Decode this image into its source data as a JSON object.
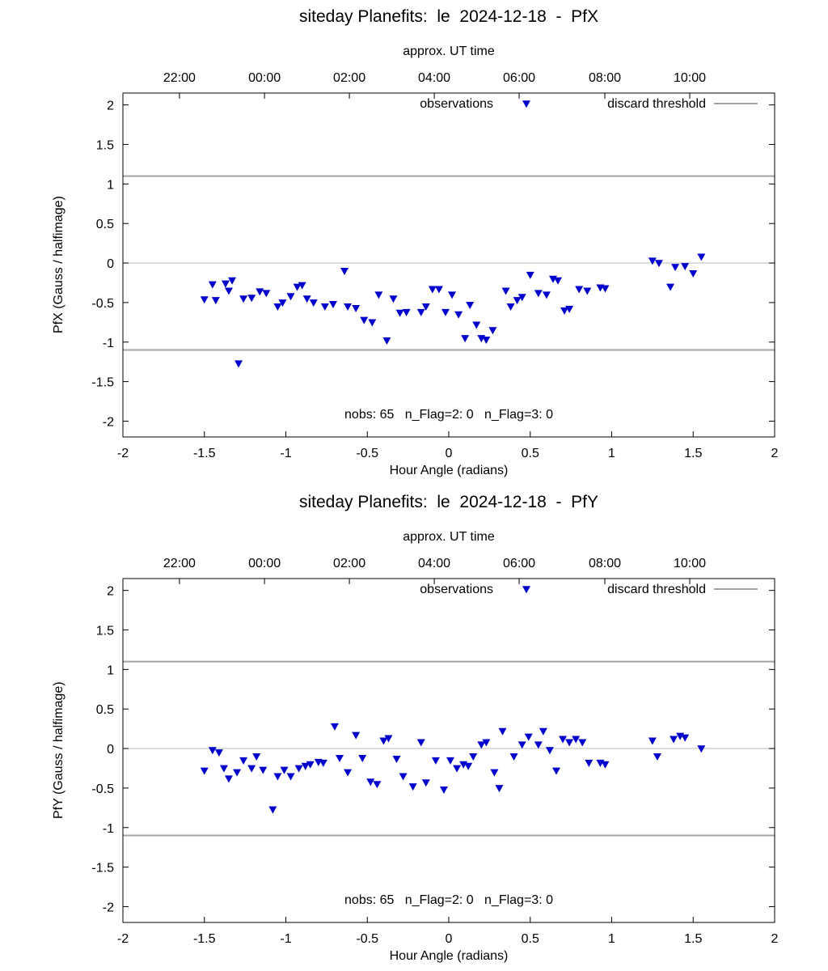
{
  "page": {
    "background": "#ffffff"
  },
  "charts": [
    {
      "title": "siteday Planefits:  le  2024-12-18  -  PfX",
      "top_axis_label": "approx. UT time",
      "xlabel": "Hour Angle (radians)",
      "ylabel": "PfX (Gauss / halfimage)",
      "annotation": "nobs: 65   n_Flag=2: 0   n_Flag=3: 0",
      "stats": {
        "nobs": 65,
        "n_flag_2": 0,
        "n_flag_3": 0
      },
      "legend": [
        {
          "label": "observations",
          "type": "marker"
        },
        {
          "label": "discard threshold",
          "type": "line"
        }
      ],
      "chart_data": {
        "type": "scatter",
        "xlabel": "Hour Angle (radians)",
        "ylabel": "PfX (Gauss / halfimage)",
        "xlim": [
          -2,
          2
        ],
        "ylim": [
          -2.2,
          2.15
        ],
        "x_ticks": [
          -2,
          -1.5,
          -1,
          -0.5,
          0,
          0.5,
          1,
          1.5,
          2
        ],
        "y_ticks": [
          2,
          1.5,
          1,
          0.5,
          0,
          -0.5,
          -1,
          -1.5,
          -2
        ],
        "top_ticks": [
          {
            "x": -1.653,
            "label": "22:00"
          },
          {
            "x": -1.131,
            "label": "00:00"
          },
          {
            "x": -0.61,
            "label": "02:00"
          },
          {
            "x": -0.089,
            "label": "04:00"
          },
          {
            "x": 0.432,
            "label": "06:00"
          },
          {
            "x": 0.958,
            "label": "08:00"
          },
          {
            "x": 1.479,
            "label": "10:00"
          }
        ],
        "threshold": 1.1,
        "zero_line": 0,
        "marker_color": "#0000cc",
        "threshold_color": "#a3a3a3",
        "zero_line_color": "#b8b8b8",
        "points": [
          [
            -1.5,
            -0.46
          ],
          [
            -1.45,
            -0.27
          ],
          [
            -1.43,
            -0.47
          ],
          [
            -1.37,
            -0.26
          ],
          [
            -1.35,
            -0.35
          ],
          [
            -1.33,
            -0.22
          ],
          [
            -1.29,
            -1.27
          ],
          [
            -1.26,
            -0.45
          ],
          [
            -1.21,
            -0.44
          ],
          [
            -1.16,
            -0.36
          ],
          [
            -1.12,
            -0.38
          ],
          [
            -1.05,
            -0.55
          ],
          [
            -1.02,
            -0.5
          ],
          [
            -0.97,
            -0.42
          ],
          [
            -0.93,
            -0.3
          ],
          [
            -0.9,
            -0.28
          ],
          [
            -0.87,
            -0.45
          ],
          [
            -0.83,
            -0.5
          ],
          [
            -0.76,
            -0.55
          ],
          [
            -0.71,
            -0.52
          ],
          [
            -0.64,
            -0.1
          ],
          [
            -0.62,
            -0.55
          ],
          [
            -0.57,
            -0.57
          ],
          [
            -0.52,
            -0.72
          ],
          [
            -0.47,
            -0.75
          ],
          [
            -0.43,
            -0.4
          ],
          [
            -0.38,
            -0.98
          ],
          [
            -0.34,
            -0.45
          ],
          [
            -0.3,
            -0.63
          ],
          [
            -0.26,
            -0.62
          ],
          [
            -0.17,
            -0.62
          ],
          [
            -0.14,
            -0.55
          ],
          [
            -0.1,
            -0.33
          ],
          [
            -0.06,
            -0.33
          ],
          [
            -0.02,
            -0.62
          ],
          [
            0.02,
            -0.4
          ],
          [
            0.06,
            -0.65
          ],
          [
            0.1,
            -0.95
          ],
          [
            0.13,
            -0.53
          ],
          [
            0.17,
            -0.78
          ],
          [
            0.2,
            -0.95
          ],
          [
            0.23,
            -0.97
          ],
          [
            0.27,
            -0.85
          ],
          [
            0.35,
            -0.35
          ],
          [
            0.38,
            -0.55
          ],
          [
            0.42,
            -0.47
          ],
          [
            0.45,
            -0.43
          ],
          [
            0.5,
            -0.15
          ],
          [
            0.55,
            -0.38
          ],
          [
            0.6,
            -0.4
          ],
          [
            0.64,
            -0.2
          ],
          [
            0.67,
            -0.22
          ],
          [
            0.71,
            -0.6
          ],
          [
            0.74,
            -0.58
          ],
          [
            0.8,
            -0.33
          ],
          [
            0.85,
            -0.35
          ],
          [
            0.93,
            -0.31
          ],
          [
            0.96,
            -0.32
          ],
          [
            1.25,
            0.03
          ],
          [
            1.29,
            0.0
          ],
          [
            1.36,
            -0.3
          ],
          [
            1.39,
            -0.05
          ],
          [
            1.45,
            -0.04
          ],
          [
            1.5,
            -0.13
          ],
          [
            1.55,
            0.08
          ]
        ]
      }
    },
    {
      "title": "siteday Planefits:  le  2024-12-18  -  PfY",
      "top_axis_label": "approx. UT time",
      "xlabel": "Hour Angle (radians)",
      "ylabel": "PfY (Gauss / halfimage)",
      "annotation": "nobs: 65   n_Flag=2: 0   n_Flag=3: 0",
      "stats": {
        "nobs": 65,
        "n_flag_2": 0,
        "n_flag_3": 0
      },
      "legend": [
        {
          "label": "observations",
          "type": "marker"
        },
        {
          "label": "discard threshold",
          "type": "line"
        }
      ],
      "chart_data": {
        "type": "scatter",
        "xlabel": "Hour Angle (radians)",
        "ylabel": "PfY (Gauss / halfimage)",
        "xlim": [
          -2,
          2
        ],
        "ylim": [
          -2.2,
          2.15
        ],
        "x_ticks": [
          -2,
          -1.5,
          -1,
          -0.5,
          0,
          0.5,
          1,
          1.5,
          2
        ],
        "y_ticks": [
          2,
          1.5,
          1,
          0.5,
          0,
          -0.5,
          -1,
          -1.5,
          -2
        ],
        "top_ticks": [
          {
            "x": -1.653,
            "label": "22:00"
          },
          {
            "x": -1.131,
            "label": "00:00"
          },
          {
            "x": -0.61,
            "label": "02:00"
          },
          {
            "x": -0.089,
            "label": "04:00"
          },
          {
            "x": 0.432,
            "label": "06:00"
          },
          {
            "x": 0.958,
            "label": "08:00"
          },
          {
            "x": 1.479,
            "label": "10:00"
          }
        ],
        "threshold": 1.1,
        "zero_line": 0,
        "marker_color": "#0000cc",
        "threshold_color": "#a3a3a3",
        "zero_line_color": "#b8b8b8",
        "points": [
          [
            -1.5,
            -0.28
          ],
          [
            -1.45,
            -0.02
          ],
          [
            -1.41,
            -0.05
          ],
          [
            -1.38,
            -0.25
          ],
          [
            -1.35,
            -0.38
          ],
          [
            -1.3,
            -0.3
          ],
          [
            -1.26,
            -0.15
          ],
          [
            -1.21,
            -0.25
          ],
          [
            -1.18,
            -0.1
          ],
          [
            -1.14,
            -0.27
          ],
          [
            -1.08,
            -0.77
          ],
          [
            -1.05,
            -0.35
          ],
          [
            -1.01,
            -0.27
          ],
          [
            -0.97,
            -0.35
          ],
          [
            -0.92,
            -0.25
          ],
          [
            -0.88,
            -0.22
          ],
          [
            -0.85,
            -0.2
          ],
          [
            -0.8,
            -0.17
          ],
          [
            -0.77,
            -0.18
          ],
          [
            -0.7,
            0.28
          ],
          [
            -0.67,
            -0.12
          ],
          [
            -0.62,
            -0.3
          ],
          [
            -0.57,
            0.17
          ],
          [
            -0.53,
            -0.12
          ],
          [
            -0.48,
            -0.42
          ],
          [
            -0.44,
            -0.45
          ],
          [
            -0.4,
            0.1
          ],
          [
            -0.37,
            0.13
          ],
          [
            -0.32,
            -0.13
          ],
          [
            -0.28,
            -0.35
          ],
          [
            -0.22,
            -0.48
          ],
          [
            -0.17,
            0.08
          ],
          [
            -0.14,
            -0.43
          ],
          [
            -0.08,
            -0.15
          ],
          [
            -0.03,
            -0.52
          ],
          [
            0.01,
            -0.15
          ],
          [
            0.05,
            -0.25
          ],
          [
            0.09,
            -0.2
          ],
          [
            0.12,
            -0.22
          ],
          [
            0.15,
            -0.1
          ],
          [
            0.2,
            0.05
          ],
          [
            0.23,
            0.08
          ],
          [
            0.28,
            -0.3
          ],
          [
            0.31,
            -0.5
          ],
          [
            0.33,
            0.22
          ],
          [
            0.4,
            -0.1
          ],
          [
            0.45,
            0.05
          ],
          [
            0.49,
            0.15
          ],
          [
            0.55,
            0.05
          ],
          [
            0.58,
            0.22
          ],
          [
            0.62,
            -0.02
          ],
          [
            0.66,
            -0.28
          ],
          [
            0.7,
            0.12
          ],
          [
            0.74,
            0.08
          ],
          [
            0.78,
            0.12
          ],
          [
            0.82,
            0.08
          ],
          [
            0.86,
            -0.18
          ],
          [
            0.93,
            -0.18
          ],
          [
            0.96,
            -0.2
          ],
          [
            1.25,
            0.1
          ],
          [
            1.28,
            -0.1
          ],
          [
            1.38,
            0.12
          ],
          [
            1.42,
            0.16
          ],
          [
            1.45,
            0.14
          ],
          [
            1.55,
            0.0
          ]
        ]
      }
    }
  ]
}
